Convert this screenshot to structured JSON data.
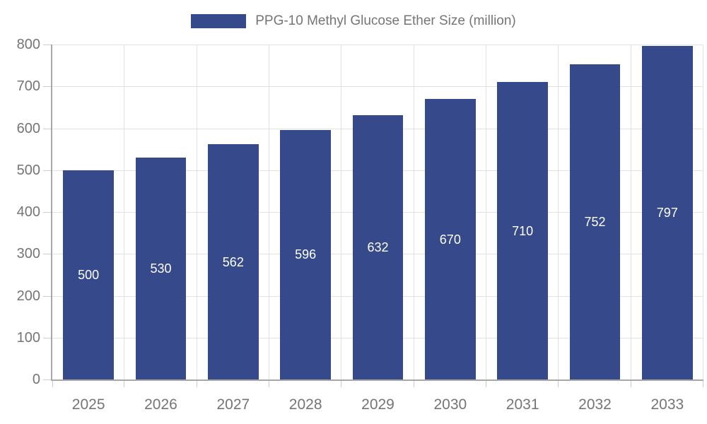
{
  "legend": {
    "label": "PPG-10 Methyl Glucose Ether Size (million)"
  },
  "chart_data": {
    "type": "bar",
    "title": "PPG-10 Methyl Glucose Ether Size (million)",
    "categories": [
      "2025",
      "2026",
      "2027",
      "2028",
      "2029",
      "2030",
      "2031",
      "2032",
      "2033"
    ],
    "values": [
      500,
      530,
      562,
      596,
      632,
      670,
      710,
      752,
      797
    ],
    "xlabel": "",
    "ylabel": "",
    "ylim": [
      0,
      800
    ],
    "ytick_step": 100,
    "grid": true,
    "legend_position": "top-center",
    "bar_color": "#35498b",
    "value_label_color": "#ffffff",
    "axis_label_color": "#757575",
    "gridline_color": "#e2e2e2",
    "axis_line_color": "#a8a8a8"
  }
}
